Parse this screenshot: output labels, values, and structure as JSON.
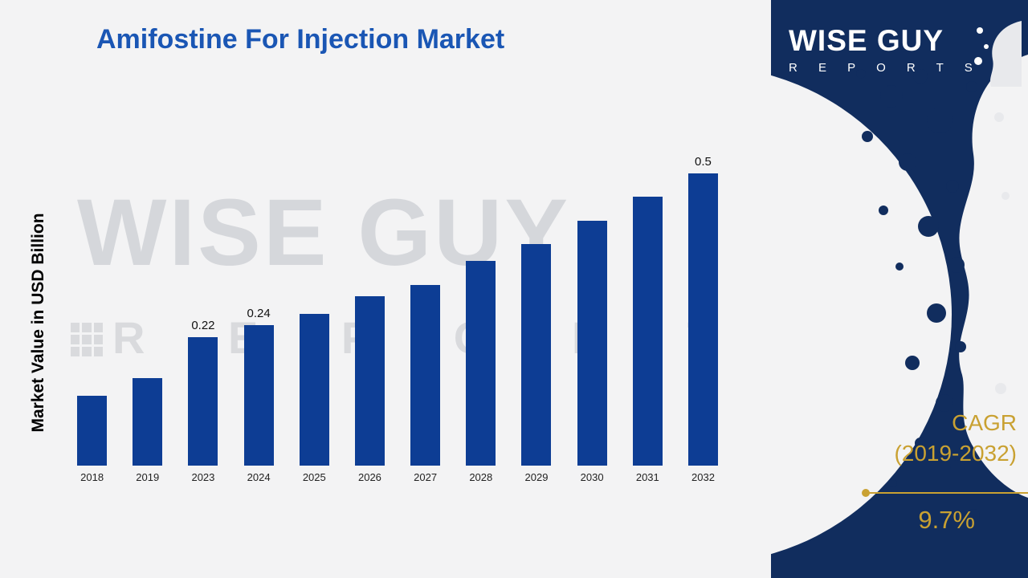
{
  "title": "Amifostine For Injection Market",
  "y_axis_label": "Market Value in USD Billion",
  "watermark": {
    "line1": "WISE GUY",
    "line2": "R E P O R T S"
  },
  "brand": {
    "logo_line1": "WISE GUY",
    "logo_line2": "R E P O R T S"
  },
  "cagr": {
    "label": "CAGR",
    "range": "(2019-2032)",
    "value": "9.7%"
  },
  "colors": {
    "bar": "#0d3d94",
    "title_blue": "#1a56b4",
    "panel_navy": "#112d5e",
    "accent_gold": "#c9a132",
    "watermark_grey": "#d5d7db",
    "background": "#f3f3f4"
  },
  "chart_data": {
    "type": "bar",
    "title": "Amifostine For Injection Market",
    "xlabel": "",
    "ylabel": "Market Value in USD Billion",
    "categories": [
      "2018",
      "2019",
      "2023",
      "2024",
      "2025",
      "2026",
      "2027",
      "2028",
      "2029",
      "2030",
      "2031",
      "2032"
    ],
    "values": [
      0.12,
      0.15,
      0.22,
      0.24,
      0.26,
      0.29,
      0.31,
      0.35,
      0.38,
      0.42,
      0.46,
      0.5
    ],
    "data_labels": [
      "",
      "",
      "0.22",
      "0.24",
      "",
      "",
      "",
      "",
      "",
      "",
      "",
      "0.5"
    ],
    "ylim": [
      0,
      0.55
    ],
    "bar_color": "#0d3d94",
    "grid": false,
    "legend": false
  }
}
